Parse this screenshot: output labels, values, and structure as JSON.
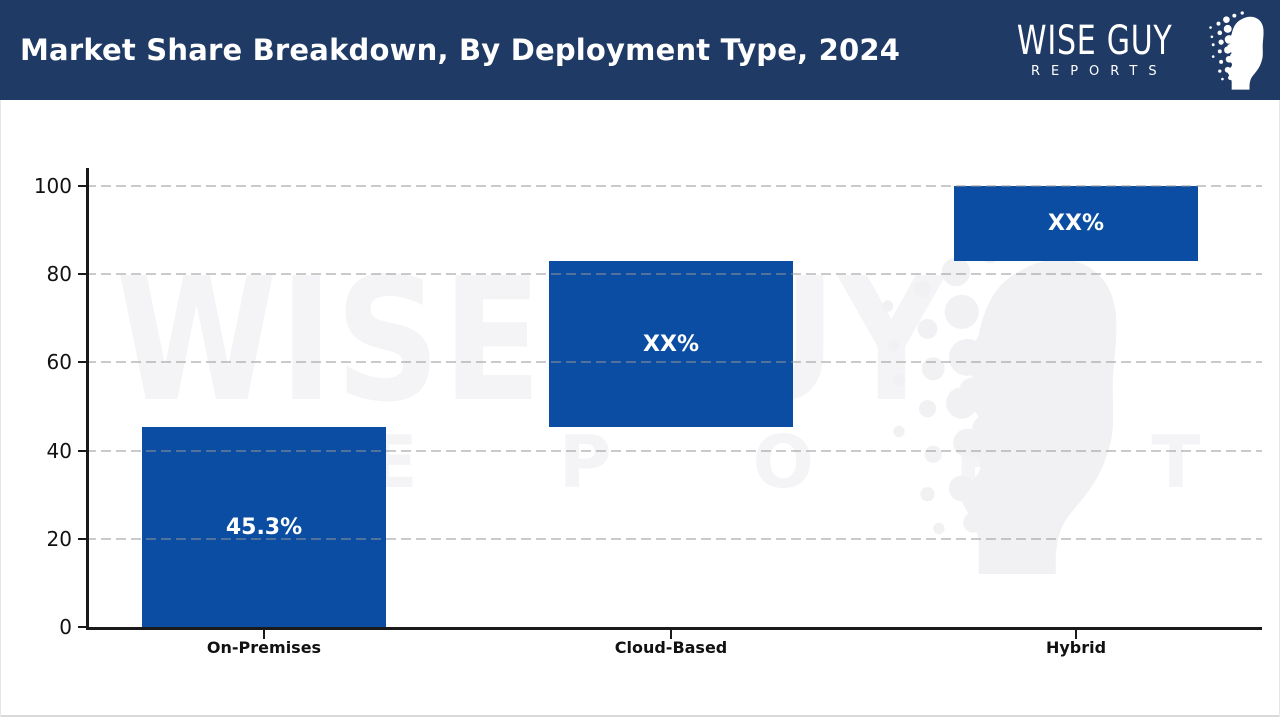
{
  "header": {
    "title": "Market Share Breakdown, By Deployment Type, 2024",
    "logo": {
      "line1": "WISE GUY",
      "line2": "REPORTS"
    }
  },
  "watermark": {
    "line1": "WISE GUY",
    "line2": "R E P O R T S"
  },
  "colors": {
    "header_navy": "#203a66",
    "bar_blue": "#0b4da2",
    "bar_label_white": "#ffffff",
    "watermark_gray": "#f4f4f6",
    "grid_gray": "#cccccc",
    "axis_black": "#1a1a1a"
  },
  "chart_data": {
    "type": "bar",
    "subtype": "waterfall",
    "title": "Market Share Breakdown, By Deployment Type, 2024",
    "categories": [
      "On-Premises",
      "Cloud-Based",
      "Hybrid"
    ],
    "segments": [
      {
        "category": "On-Premises",
        "label": "45.3%",
        "start": 0,
        "end": 45.3
      },
      {
        "category": "Cloud-Based",
        "label": "XX%",
        "start": 45.3,
        "end": 83
      },
      {
        "category": "Hybrid",
        "label": "XX%",
        "start": 83,
        "end": 100
      }
    ],
    "xlabel": "",
    "ylabel": "",
    "ylim": [
      0,
      104
    ],
    "yticks": [
      0,
      20,
      40,
      60,
      80,
      100
    ],
    "grid": true,
    "grid_style": "dashed",
    "legend": false,
    "bar_color": "#0b4da2",
    "label_color": "#ffffff"
  }
}
